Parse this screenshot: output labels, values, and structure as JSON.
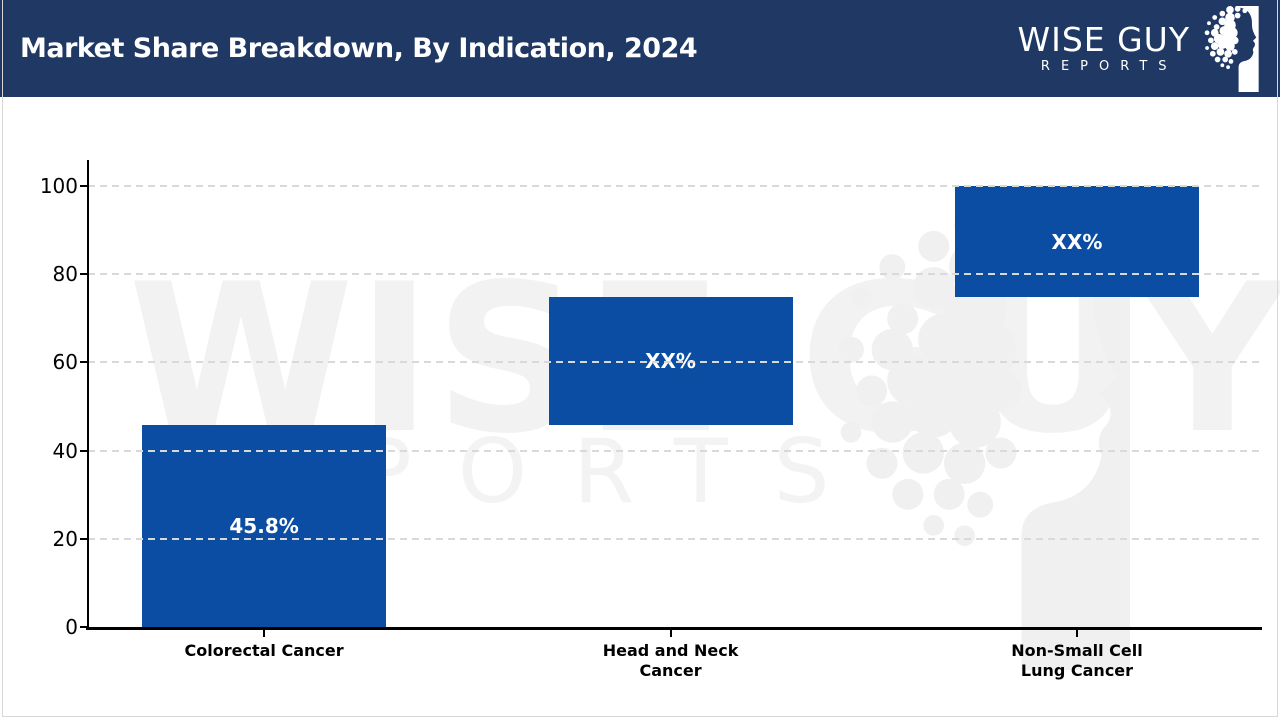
{
  "header": {
    "title": "Market Share Breakdown, By Indication, 2024",
    "logo": {
      "line1": "WISE GUY",
      "line2": "REPORTS"
    }
  },
  "icons": {
    "logo_head": "wiseguy-dotted-head-icon",
    "watermark_head": "wiseguy-dotted-head-icon"
  },
  "watermark": {
    "line1": "WISE GUY",
    "line2": "REPORTS"
  },
  "chart_data": {
    "type": "bar",
    "subtype": "waterfall",
    "title": "Market Share Breakdown, By Indication, 2024",
    "categories": [
      [
        "Colorectal Cancer"
      ],
      [
        "Head and Neck",
        "Cancer"
      ],
      [
        "Non-Small Cell",
        "Lung Cancer"
      ]
    ],
    "bars": [
      {
        "label": "45.8%",
        "start": 0,
        "end": 45.8
      },
      {
        "label": "XX%",
        "start": 45.8,
        "end": 74.8
      },
      {
        "label": "XX%",
        "start": 74.8,
        "end": 100
      }
    ],
    "yticks": [
      0,
      20,
      40,
      60,
      80,
      100
    ],
    "ylim": [
      0,
      106
    ],
    "xlabel": "",
    "ylabel": "",
    "grid": "horizontal-dashed",
    "legend": "none",
    "colors": {
      "bar": "#0B4DA2",
      "bar_label": "#FFFFFF",
      "header_bg": "#1F3864",
      "gridline": "#D9D9D9",
      "axis": "#000000",
      "frame_border": "#D8D8D8"
    }
  }
}
